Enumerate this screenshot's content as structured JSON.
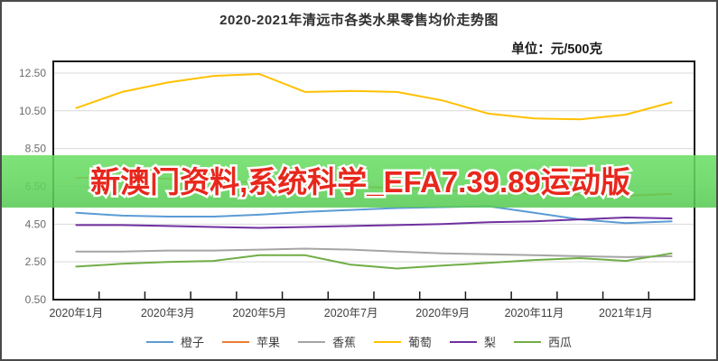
{
  "header": {
    "title": "2020-2021年清远市各类水果零售均价走势图",
    "unit_label": "单位：元/500克"
  },
  "banner": {
    "text": "新澳门资料,系统科学_EFA7.39.89运动版",
    "bg_color": "#61d55c",
    "text_color": "#e8271c",
    "outline_color": "#ffffff"
  },
  "chart_data": {
    "type": "line",
    "title": "2020-2021年清远市各类水果零售均价走势图",
    "unit": "元/500克",
    "grid": true,
    "legend_position": "bottom",
    "ylim": [
      0.5,
      13.12
    ],
    "categories": [
      "2020年1月",
      "2020年2月",
      "2020年3月",
      "2020年4月",
      "2020年5月",
      "2020年6月",
      "2020年7月",
      "2020年8月",
      "2020年9月",
      "2020年10月",
      "2020年11月",
      "2020年12月",
      "2021年1月",
      "2021年2月"
    ],
    "x_ticks": [
      {
        "label": "2020年1月",
        "index": 0
      },
      {
        "label": "2020年3月",
        "index": 2
      },
      {
        "label": "2020年5月",
        "index": 4
      },
      {
        "label": "2020年7月",
        "index": 6
      },
      {
        "label": "2020年9月",
        "index": 8
      },
      {
        "label": "2020年11月",
        "index": 10
      },
      {
        "label": "2021年1月",
        "index": 12
      }
    ],
    "y_ticks": [
      {
        "label": "12.50",
        "value": 12.5
      },
      {
        "label": "10.50",
        "value": 10.5
      },
      {
        "label": "8.50",
        "value": 8.5
      },
      {
        "label": "6.50",
        "value": 6.5
      },
      {
        "label": "4.50",
        "value": 4.5
      },
      {
        "label": "2.50",
        "value": 2.5
      },
      {
        "label": "0.50",
        "value": 0.5
      }
    ],
    "series": [
      {
        "name": "橙子",
        "color": "#5b9bd5",
        "values": [
          5.1,
          4.95,
          4.9,
          4.9,
          5.0,
          5.15,
          5.25,
          5.35,
          5.4,
          5.45,
          5.1,
          4.75,
          4.55,
          4.65
        ]
      },
      {
        "name": "苹果",
        "color": "#ed7d31",
        "values": [
          6.95,
          7.0,
          6.9,
          6.8,
          6.7,
          6.6,
          6.5,
          6.4,
          6.3,
          6.2,
          6.1,
          6.05,
          6.0,
          6.1
        ]
      },
      {
        "name": "香蕉",
        "color": "#a5a5a5",
        "values": [
          3.05,
          3.05,
          3.1,
          3.1,
          3.15,
          3.2,
          3.15,
          3.05,
          2.95,
          2.9,
          2.85,
          2.8,
          2.75,
          2.8
        ]
      },
      {
        "name": "葡萄",
        "color": "#ffc000",
        "values": [
          10.65,
          11.5,
          12.0,
          12.35,
          12.45,
          11.5,
          11.55,
          11.5,
          11.05,
          10.35,
          10.1,
          10.05,
          10.3,
          10.95
        ]
      },
      {
        "name": "梨",
        "color": "#7030a0",
        "values": [
          4.45,
          4.45,
          4.4,
          4.35,
          4.3,
          4.35,
          4.4,
          4.45,
          4.5,
          4.6,
          4.65,
          4.75,
          4.85,
          4.8
        ]
      },
      {
        "name": "西瓜",
        "color": "#70ad47",
        "values": [
          2.25,
          2.4,
          2.5,
          2.55,
          2.85,
          2.85,
          2.35,
          2.15,
          2.3,
          2.45,
          2.6,
          2.7,
          2.55,
          2.95
        ]
      }
    ]
  }
}
